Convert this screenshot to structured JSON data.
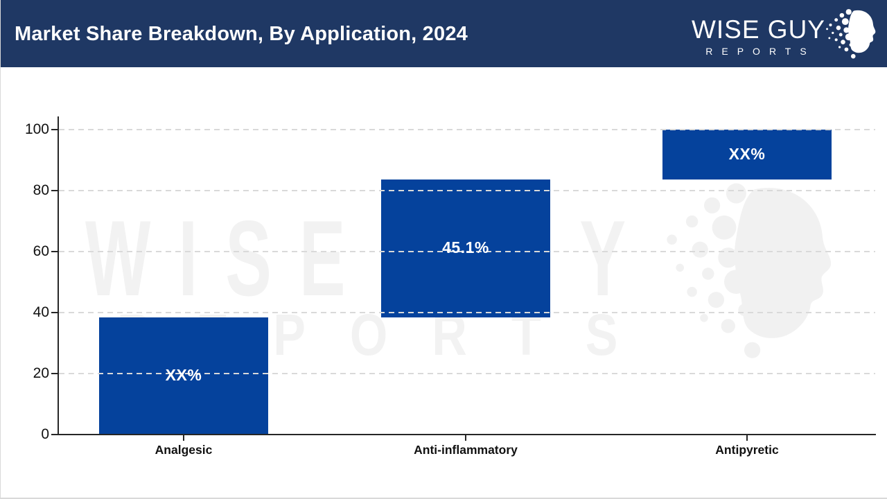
{
  "header": {
    "title": "Market Share Breakdown, By Application, 2024",
    "logo": {
      "line1": "WISE GUY",
      "line2": "REPORTS"
    }
  },
  "watermark": {
    "line1": "WISE GUY",
    "line2": "REPORTS"
  },
  "chart_data": {
    "type": "bar",
    "subtype": "waterfall-segments",
    "title": "Market Share Breakdown, By Application, 2024",
    "xlabel": "",
    "ylabel": "",
    "ylim": [
      0,
      100
    ],
    "yticks": [
      0,
      20,
      40,
      60,
      80,
      100
    ],
    "grid": "horizontal-dashed",
    "legend": "none",
    "bar_color": "#05429c",
    "categories": [
      "Analgesic",
      "Anti-inflammatory",
      "Antipyretic"
    ],
    "segments": [
      {
        "category": "Analgesic",
        "start": 0,
        "end": 38.5,
        "value": 38.5,
        "value_label": "XX%"
      },
      {
        "category": "Anti-inflammatory",
        "start": 38.5,
        "end": 83.6,
        "value": 45.1,
        "value_label": "45.1%"
      },
      {
        "category": "Antipyretic",
        "start": 83.6,
        "end": 100,
        "value": 16.4,
        "value_label": "XX%"
      }
    ]
  },
  "colors": {
    "header_bg": "#1f3864",
    "bar": "#05429c",
    "grid": "#d9d9d9",
    "axis": "#262626",
    "watermark": "#f2f2f2"
  }
}
